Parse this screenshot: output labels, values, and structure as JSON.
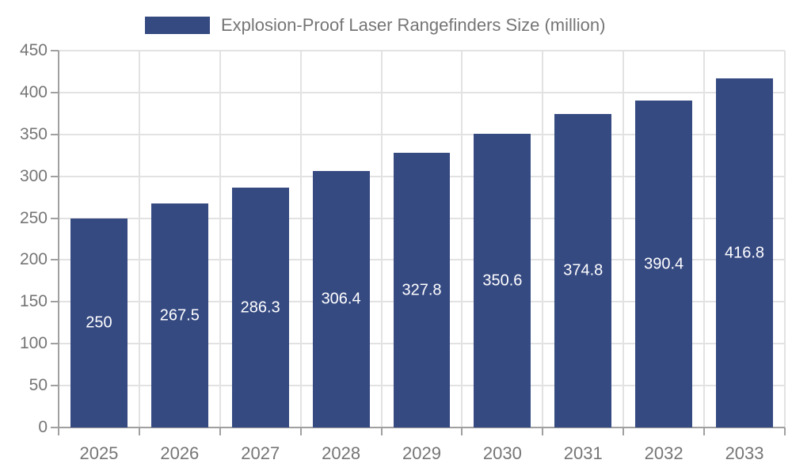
{
  "legend": {
    "label": "Explosion-Proof Laser Rangefinders Size (million)"
  },
  "chart_data": {
    "type": "bar",
    "title": "Explosion-Proof Laser Rangefinders Size (million)",
    "categories": [
      "2025",
      "2026",
      "2027",
      "2028",
      "2029",
      "2030",
      "2031",
      "2032",
      "2033"
    ],
    "values": [
      250,
      267.5,
      286.3,
      306.4,
      327.8,
      350.6,
      374.8,
      390.4,
      416.8
    ],
    "value_labels": [
      "250",
      "267.5",
      "286.3",
      "306.4",
      "327.8",
      "350.6",
      "374.8",
      "390.4",
      "416.8"
    ],
    "xlabel": "",
    "ylabel": "",
    "ylim": [
      0,
      450
    ],
    "yticks": [
      0,
      50,
      100,
      150,
      200,
      250,
      300,
      350,
      400,
      450
    ],
    "grid": "on",
    "legend_position": "top",
    "colors": {
      "bar": "#364A82",
      "bar_value_text": "#ffffff",
      "axis_text": "#757575",
      "grid_line": "#e2e2e2",
      "axis_line": "#a0a0a0",
      "background": "#ffffff"
    }
  }
}
